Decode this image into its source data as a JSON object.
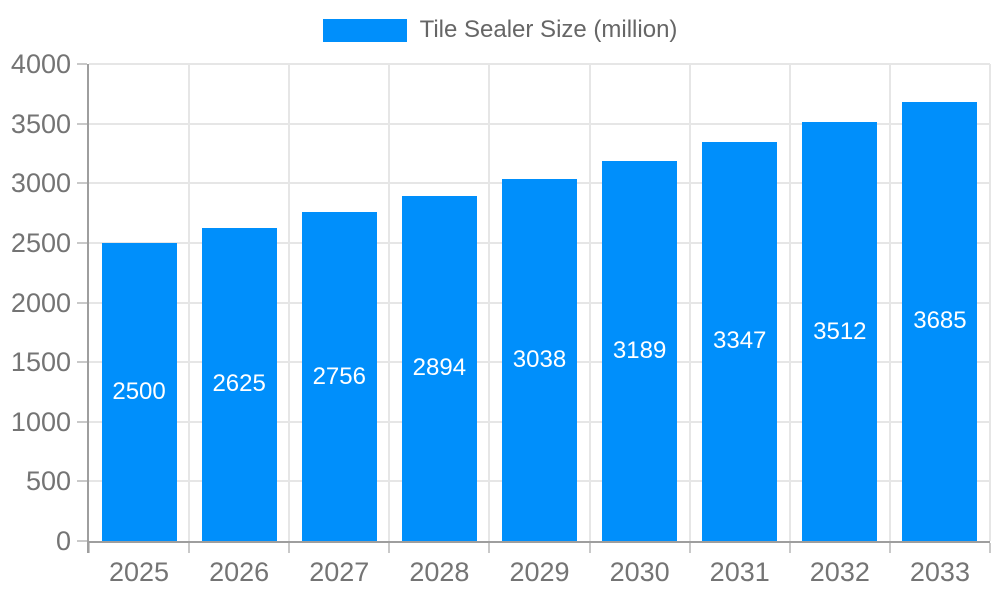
{
  "legend": {
    "label": "Tile Sealer Size (million)"
  },
  "chart_data": {
    "type": "bar",
    "title": "",
    "categories": [
      "2025",
      "2026",
      "2027",
      "2028",
      "2029",
      "2030",
      "2031",
      "2032",
      "2033"
    ],
    "series": [
      {
        "name": "Tile Sealer Size (million)",
        "values": [
          2500,
          2625,
          2756,
          2894,
          3038,
          3189,
          3347,
          3512,
          3685
        ]
      }
    ],
    "xlabel": "",
    "ylabel": "",
    "ylim": [
      0,
      4000
    ],
    "y_ticks": [
      0,
      500,
      1000,
      1500,
      2000,
      2500,
      3000,
      3500,
      4000
    ],
    "grid": true,
    "data_labels": true,
    "legend_position": "top-center",
    "colors": {
      "bar": "#008FFB",
      "data_label": "#FFFFFF",
      "axis_label": "#747474",
      "legend_text": "#666666",
      "grid_line": "#E6E6E6",
      "tick_mark": "#C9C9C9",
      "axis_line": "#9E9E9E",
      "background": "#FFFFFF"
    }
  }
}
